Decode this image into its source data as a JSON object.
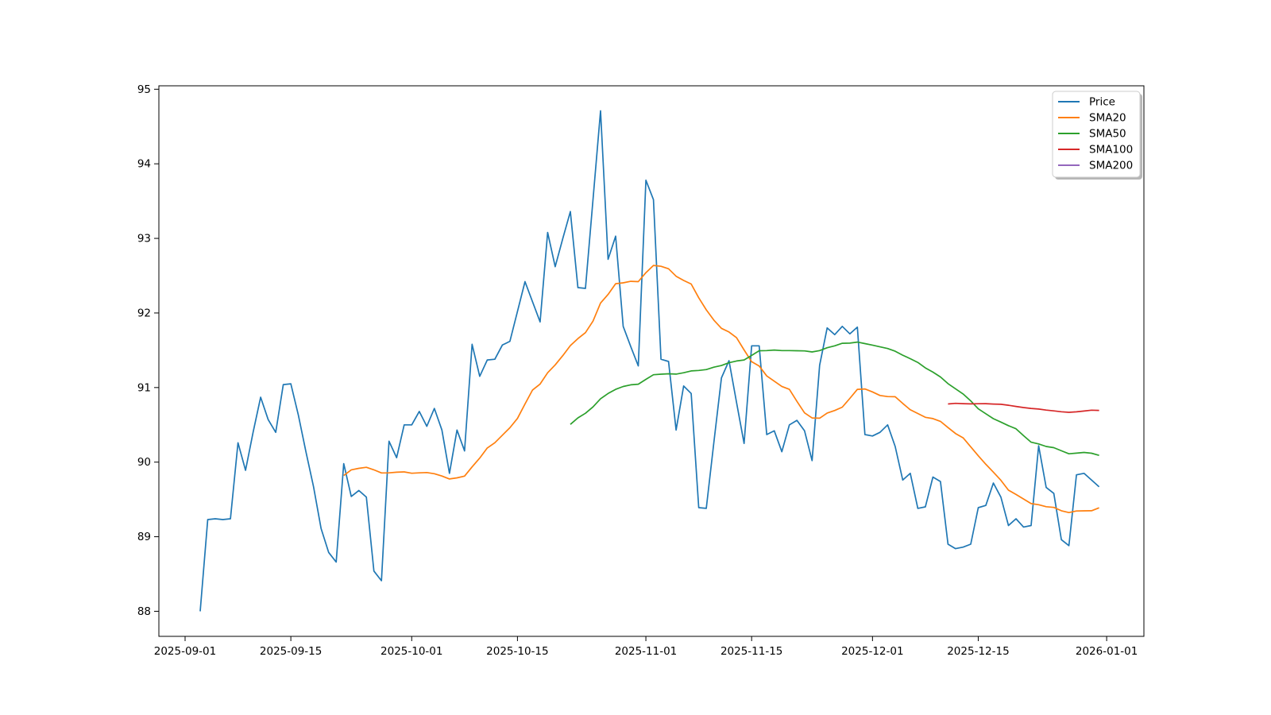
{
  "figure": {
    "background": "#ffffff"
  },
  "chart_data": {
    "type": "line",
    "title": "",
    "xlabel": "",
    "ylabel": "",
    "grid": false,
    "x_axis": {
      "ticks": [
        "2025-09-01",
        "2025-09-15",
        "2025-10-01",
        "2025-10-15",
        "2025-11-01",
        "2025-11-15",
        "2025-12-01",
        "2025-12-15",
        "2026-01-01"
      ],
      "lim_days": [
        -3.47,
        126.93
      ]
    },
    "y_axis": {
      "ticks": [
        88,
        89,
        90,
        91,
        92,
        93,
        94,
        95
      ],
      "lim": [
        87.664,
        95.046
      ]
    },
    "legend": {
      "position": "upper right",
      "shadow": true,
      "entries": [
        {
          "label": "Price",
          "color": "#1f77b4"
        },
        {
          "label": "SMA20",
          "color": "#ff7f0e"
        },
        {
          "label": "SMA50",
          "color": "#2ca02c"
        },
        {
          "label": "SMA100",
          "color": "#d62728"
        },
        {
          "label": "SMA200",
          "color": "#9467bd"
        }
      ]
    },
    "price_series": {
      "name": "Price",
      "color": "#1f77b4",
      "start_date": "2025-09-03",
      "frequency": "daily",
      "values": [
        88.0,
        89.23,
        89.24,
        89.23,
        89.24,
        90.26,
        89.89,
        90.4,
        90.87,
        90.57,
        90.4,
        91.04,
        91.05,
        90.63,
        90.14,
        89.67,
        89.11,
        88.79,
        88.66,
        89.98,
        89.54,
        89.62,
        89.53,
        88.54,
        88.41,
        90.28,
        90.06,
        90.5,
        90.5,
        90.68,
        90.48,
        90.72,
        90.43,
        89.85,
        90.43,
        90.15,
        91.58,
        91.15,
        91.37,
        91.38,
        91.57,
        91.62,
        92.02,
        92.42,
        92.15,
        91.88,
        93.08,
        92.62,
        93.0,
        93.36,
        92.34,
        92.33,
        93.52,
        94.71,
        92.72,
        93.03,
        91.82,
        91.55,
        91.29,
        93.78,
        93.52,
        91.38,
        91.35,
        90.43,
        91.02,
        90.92,
        89.39,
        89.38,
        90.26,
        91.13,
        91.36,
        90.8,
        90.25,
        91.56,
        91.56,
        90.37,
        90.42,
        90.14,
        90.5,
        90.56,
        90.42,
        90.02,
        91.3,
        91.8,
        91.71,
        91.82,
        91.72,
        91.81,
        90.37,
        90.35,
        90.4,
        90.5,
        90.21,
        89.76,
        89.85,
        89.38,
        89.4,
        89.8,
        89.74,
        88.9,
        88.84,
        88.86,
        88.9,
        89.39,
        89.42,
        89.72,
        89.53,
        89.15,
        89.24,
        89.13,
        89.15,
        90.22,
        89.66,
        89.58,
        88.96,
        88.88,
        89.83,
        89.85,
        89.76,
        89.67
      ]
    },
    "moving_averages": [
      {
        "name": "SMA20",
        "period": 20
      },
      {
        "name": "SMA50",
        "period": 50
      },
      {
        "name": "SMA100",
        "period": 100
      },
      {
        "name": "SMA200",
        "period": 200
      }
    ]
  }
}
